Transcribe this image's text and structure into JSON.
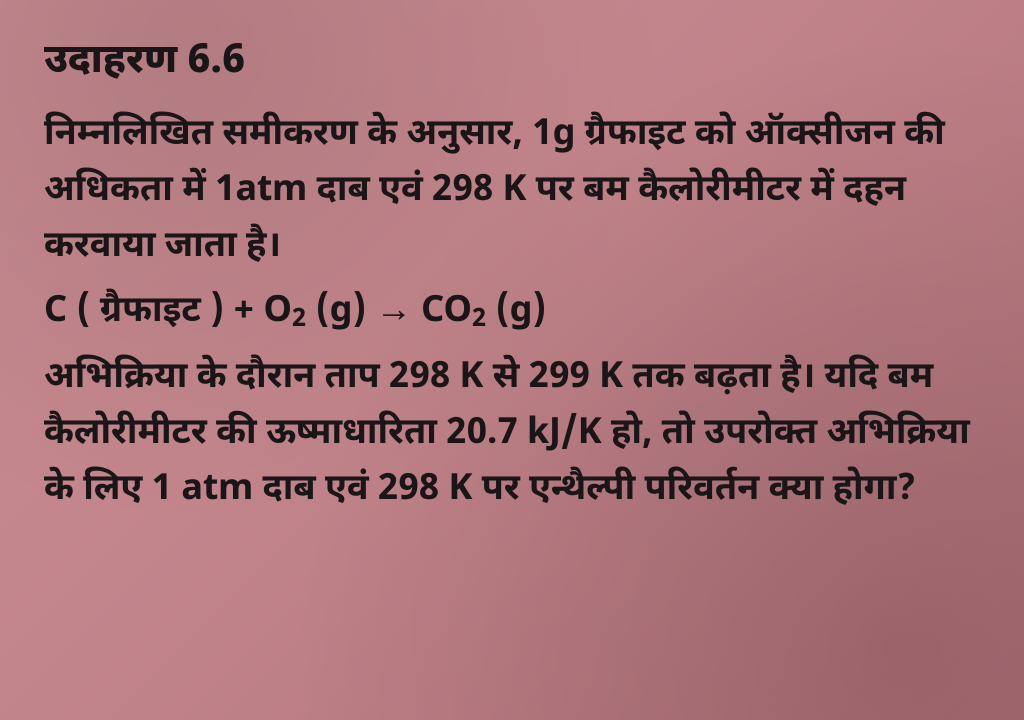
{
  "colors": {
    "background_top": "#c88c92",
    "background_bottom": "#b07078",
    "text": "#1a1516"
  },
  "typography": {
    "heading_fontsize_pt": 30,
    "body_fontsize_pt": 27,
    "weight": "bold",
    "family": "Devanagari serif/print"
  },
  "heading": "उदाहरण 6.6",
  "para1": "निम्नलिखित समीकरण के अनुसार, 1g ग्रैफाइट को ऑक्सीजन की अधिकता में 1atm दाब एवं 298 K पर बम कैलोरीमीटर में दहन करवाया जाता है।",
  "equation": {
    "lhs_species": "C",
    "lhs_note": "( ग्रैफाइट )",
    "plus": "+",
    "o2": "O",
    "o2_sub": "2",
    "o2_state": "(g)",
    "arrow": "→",
    "co2_c": "CO",
    "co2_sub": "2",
    "co2_state": "(g)"
  },
  "para2": "अभिक्रिया के दौरान ताप 298 K से 299 K तक बढ़ता है। यदि बम कैलोरीमीटर की ऊष्माधारिता 20.7 kJ/K हो, तो उपरोक्त अभिक्रिया के लिए 1 atm दाब एवं 298 K पर एन्थैल्पी परिवर्तन क्या होगा?"
}
